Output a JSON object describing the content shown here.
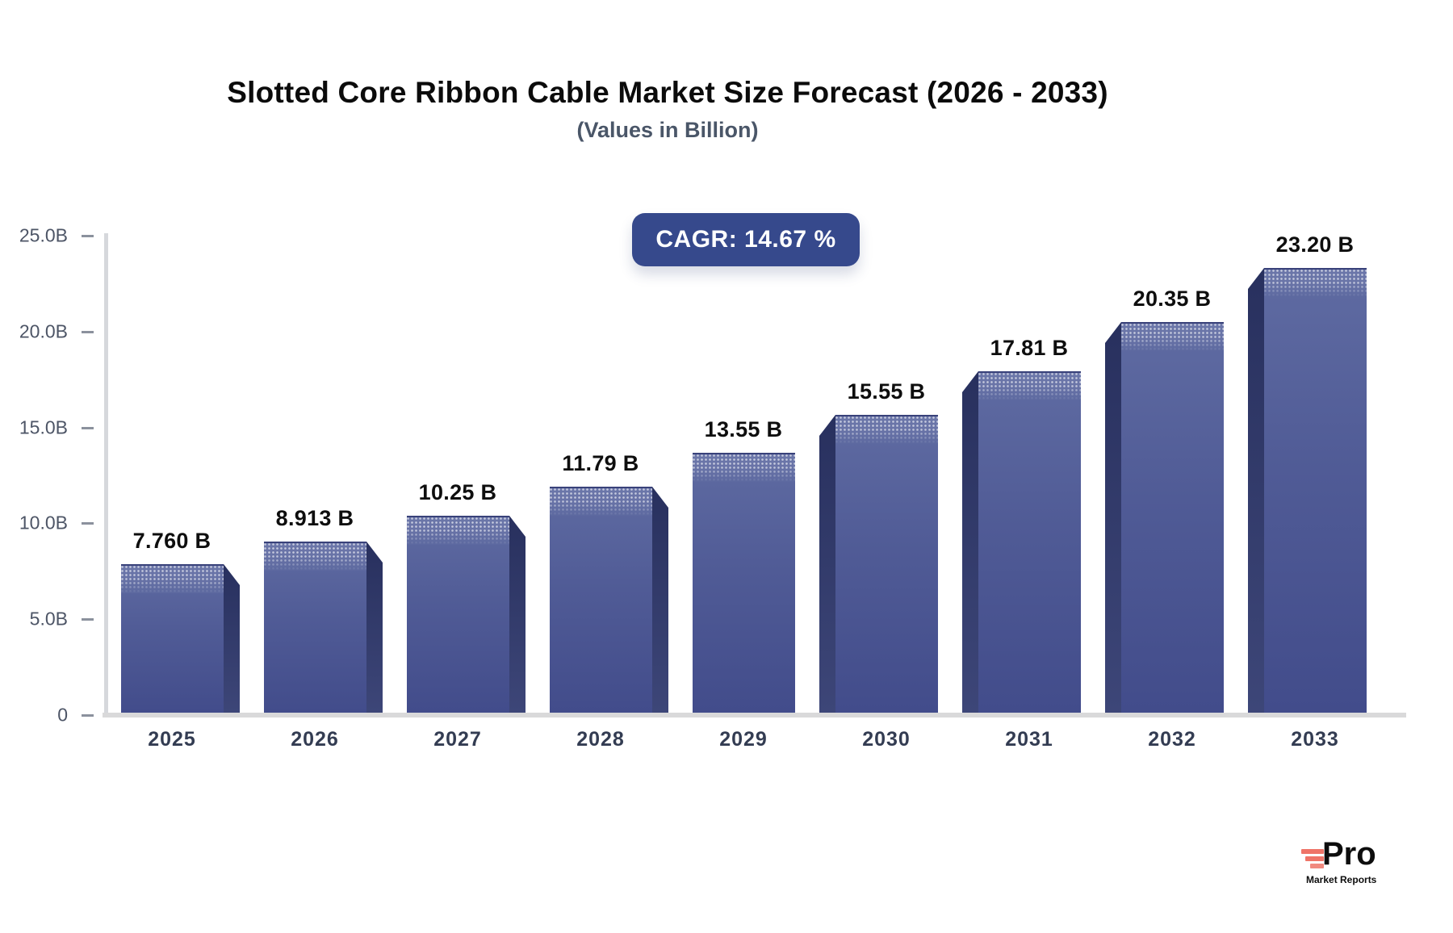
{
  "title": "Slotted Core Ribbon Cable Market Size Forecast (2026 - 2033)",
  "subtitle": "(Values in Billion)",
  "cagr_badge": {
    "label": "CAGR: 14.67 %",
    "bg_color": "#36498c",
    "text_color": "#ffffff"
  },
  "logo": {
    "name": "Pro",
    "tagline": "Market Reports",
    "accent_color": "#ef7468"
  },
  "chart_data": {
    "type": "bar",
    "title": "Slotted Core Ribbon Cable Market Size Forecast (2026 - 2033)",
    "subtitle": "(Values in Billion)",
    "cagr_percent": 14.67,
    "categories": [
      "2025",
      "2026",
      "2027",
      "2028",
      "2029",
      "2030",
      "2031",
      "2032",
      "2033"
    ],
    "values": [
      7.76,
      8.913,
      10.25,
      11.79,
      13.55,
      15.55,
      17.81,
      20.35,
      23.2
    ],
    "value_labels": [
      "7.760 B",
      "8.913 B",
      "10.25 B",
      "11.79 B",
      "13.55 B",
      "15.55 B",
      "17.81 B",
      "20.35 B",
      "23.20 B"
    ],
    "xlabel": "",
    "ylabel": "",
    "ylim": [
      0,
      25
    ],
    "yticks": [
      {
        "value": 0,
        "label": "0"
      },
      {
        "value": 5,
        "label": "5.0B"
      },
      {
        "value": 10,
        "label": "10.0B"
      },
      {
        "value": 15,
        "label": "15.0B"
      },
      {
        "value": 20,
        "label": "20.0B"
      },
      {
        "value": 25,
        "label": "25.0B"
      }
    ],
    "grid": false,
    "legend": false,
    "bar_color_top": "#5f6ba2",
    "bar_color_bottom": "#424c8b",
    "bar_side_color": "#2b3467",
    "unit_suffix": "B"
  }
}
